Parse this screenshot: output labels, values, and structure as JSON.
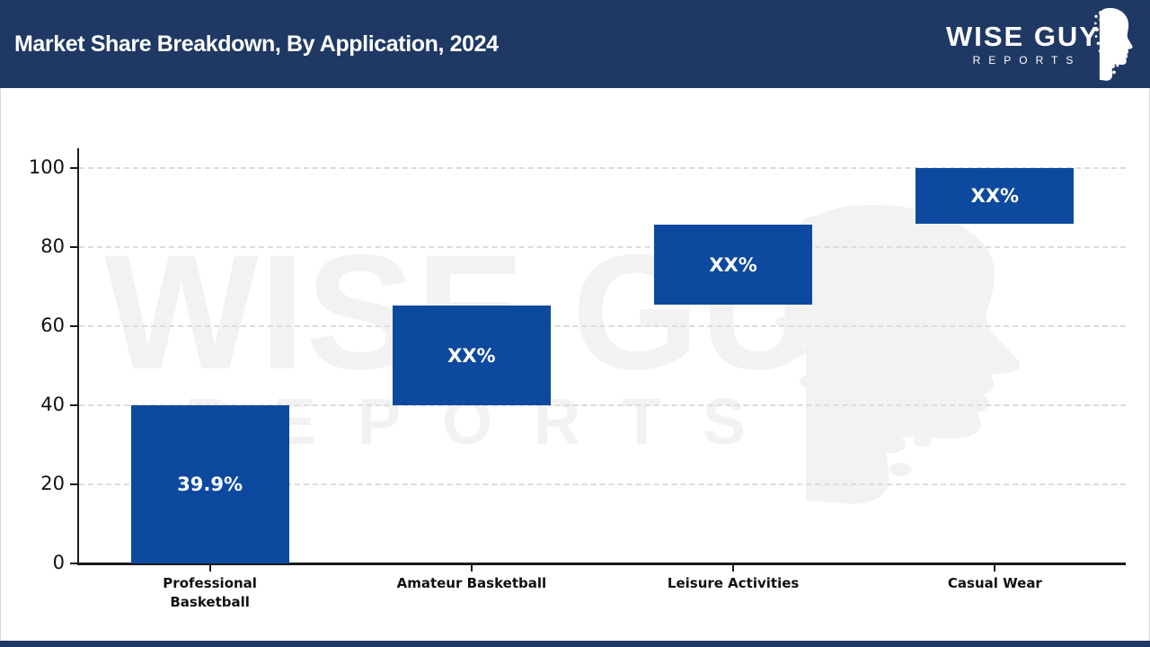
{
  "header": {
    "title": "Market Share Breakdown, By Application, 2024",
    "logo": {
      "line1": "WISE GUY",
      "line2": "REPORTS"
    }
  },
  "watermark": {
    "line1": "WISE GUY",
    "line2": "REPORTS"
  },
  "colors": {
    "header_bg": "#1f3864",
    "footer_bg": "#1f3864",
    "bar_fill": "#0d499e",
    "bar_label_text": "#ffffff",
    "grid_line": "#dcdcdc",
    "axis_line": "#1a1a1a",
    "watermark": "#f2f2f2",
    "logo_text": "#ffffff"
  },
  "chart_data": {
    "type": "bar",
    "subtype": "floating-range-bars",
    "title": "Market Share Breakdown, By Application, 2024",
    "xlabel": "",
    "ylabel": "",
    "ylim": [
      0,
      105
    ],
    "yticks": [
      0,
      20,
      40,
      60,
      80,
      100
    ],
    "grid": "horizontal-dashed",
    "legend": "none",
    "categories": [
      "Professional Basketball",
      "Amateur Basketball",
      "Leisure Activities",
      "Casual Wear"
    ],
    "bars": [
      {
        "category_lines": [
          "Professional",
          "Basketball"
        ],
        "low": 0,
        "high": 39.9,
        "label": "39.9%"
      },
      {
        "category_lines": [
          "Amateur Basketball"
        ],
        "low": 40,
        "high": 65.2,
        "label": "XX%"
      },
      {
        "category_lines": [
          "Leisure Activities"
        ],
        "low": 65.4,
        "high": 85.7,
        "label": "XX%"
      },
      {
        "category_lines": [
          "Casual Wear"
        ],
        "low": 86,
        "high": 100,
        "label": "XX%"
      }
    ]
  }
}
